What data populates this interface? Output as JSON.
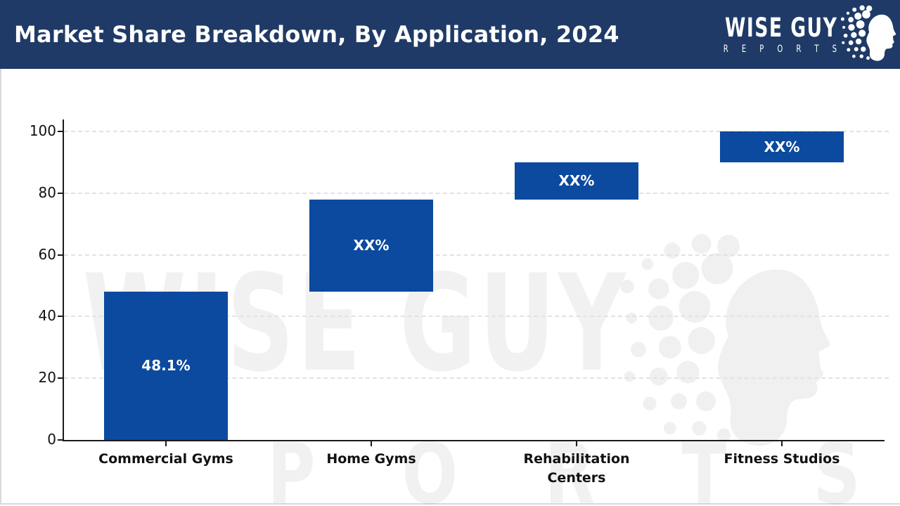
{
  "header": {
    "title": "Market Share Breakdown, By Application, 2024",
    "logo": {
      "line1": "WISE GUY",
      "line2": "R E P O R T S"
    }
  },
  "watermark": {
    "line1": "WISE GUY",
    "line2": "P O R T S"
  },
  "colors": {
    "header_bg": "#1F3A66",
    "bar_blue": "#0B4A9E",
    "bar_label_white": "#FFFFFF",
    "axis_black": "#1A1A1A",
    "grid_gray": "#E2E2E2",
    "card_border": "#D9D9D9"
  },
  "chart_data": {
    "type": "bar",
    "subtype": "waterfall-stacked-breakdown",
    "title": "Market Share Breakdown, By Application, 2024",
    "xlabel": "",
    "ylabel": "",
    "ylim": [
      0,
      104
    ],
    "yticks": [
      0,
      20,
      40,
      60,
      80,
      100
    ],
    "grid": "horizontal dashed, behind bars",
    "legend": "none",
    "bar_color": "#0B4A9E",
    "categories": [
      "Commercial Gyms",
      "Home Gyms",
      "Rehabilitation\nCenters",
      "Fitness Studios"
    ],
    "segments": [
      {
        "category": "Commercial Gyms",
        "start": 0,
        "end": 48.1,
        "label": "48.1%"
      },
      {
        "category": "Home Gyms",
        "start": 48.1,
        "end": 78,
        "label": "XX%"
      },
      {
        "category": "Rehabilitation Centers",
        "start": 78,
        "end": 90,
        "label": "XX%"
      },
      {
        "category": "Fitness Studios",
        "start": 90,
        "end": 100,
        "label": "XX%"
      }
    ]
  }
}
